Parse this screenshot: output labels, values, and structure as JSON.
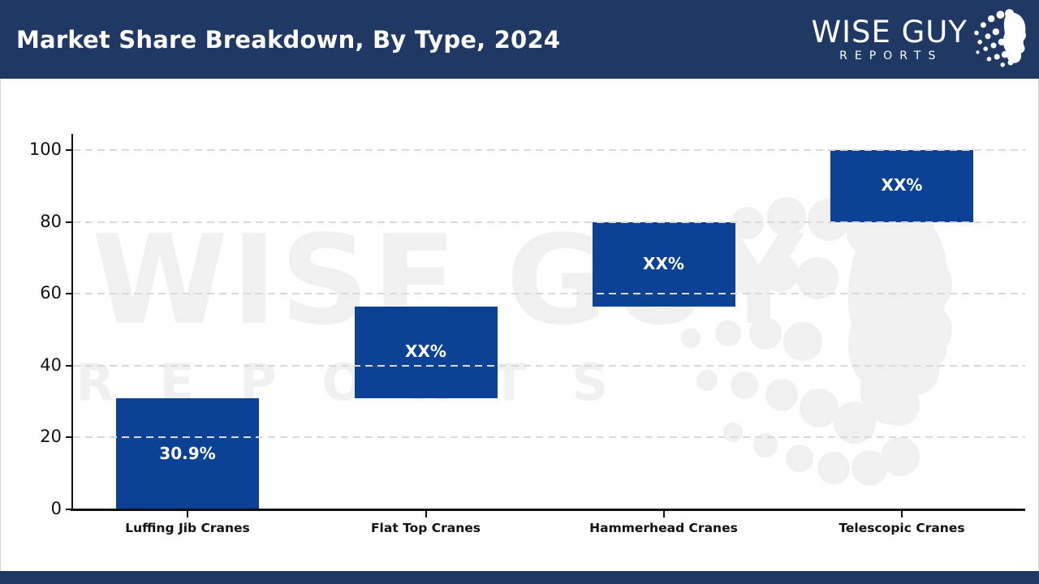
{
  "header": {
    "title": "Market Share Breakdown, By Type, 2024",
    "logo": {
      "line1": "WISE GUY",
      "line2": "REPORTS"
    }
  },
  "watermark": {
    "line1": "WISE GUY",
    "line2": "REPORTS"
  },
  "colors": {
    "banner_navy": "#203864",
    "bar_blue": "#0B4296",
    "bar_label_white": "#FFFFFF",
    "gridline_gray": "#D9D9D9",
    "axis_black": "#111111",
    "watermark_gray": "#F0F0F0",
    "title_white": "#FFFFFF"
  },
  "chart_data": {
    "type": "bar",
    "subtype": "waterfall-floating-bars",
    "title": "Market Share Breakdown, By Type, 2024",
    "categories": [
      "Luffing Jib Cranes",
      "Flat Top Cranes",
      "Hammerhead Cranes",
      "Telescopic Cranes"
    ],
    "bars": [
      {
        "category": "Luffing Jib Cranes",
        "label": "30.9%",
        "start": 0,
        "end": 30.9
      },
      {
        "category": "Flat Top Cranes",
        "label": "XX%",
        "start": 30.9,
        "end": 56.5
      },
      {
        "category": "Hammerhead Cranes",
        "label": "XX%",
        "start": 56.5,
        "end": 80
      },
      {
        "category": "Telescopic Cranes",
        "label": "XX%",
        "start": 80,
        "end": 100
      }
    ],
    "xlabel": "",
    "ylabel": "",
    "yticks": [
      0,
      20,
      40,
      60,
      80,
      100
    ],
    "ylim": [
      0,
      105
    ],
    "grid": "horizontal dashed lines at y ticks, drawn over bars",
    "legend": "none"
  }
}
